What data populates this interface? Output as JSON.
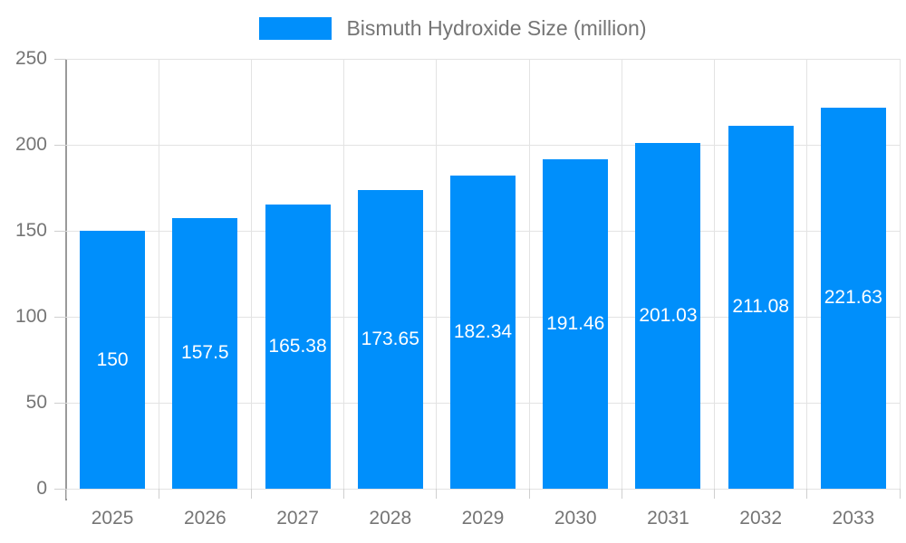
{
  "chart_data": {
    "type": "bar",
    "categories": [
      "2025",
      "2026",
      "2027",
      "2028",
      "2029",
      "2030",
      "2031",
      "2032",
      "2033"
    ],
    "series": [
      {
        "name": "Bismuth Hydroxide Size (million)",
        "values": [
          150,
          157.5,
          165.38,
          173.65,
          182.34,
          191.46,
          201.03,
          211.08,
          221.63
        ]
      }
    ],
    "title": "",
    "xlabel": "",
    "ylabel": "",
    "ylim": [
      0,
      250
    ],
    "yticks": [
      0,
      50,
      100,
      150,
      200,
      250
    ],
    "grid": "horizontal and vertical category boundaries",
    "legend_position": "top",
    "value_labels_shown_inside_bars": true
  },
  "colors": {
    "bar": "#008FFB",
    "bar_value_text": "#ffffff",
    "axis_text": "#757575",
    "grid_line": "#e3e3e3",
    "axis_line": "#9a9a9a"
  }
}
